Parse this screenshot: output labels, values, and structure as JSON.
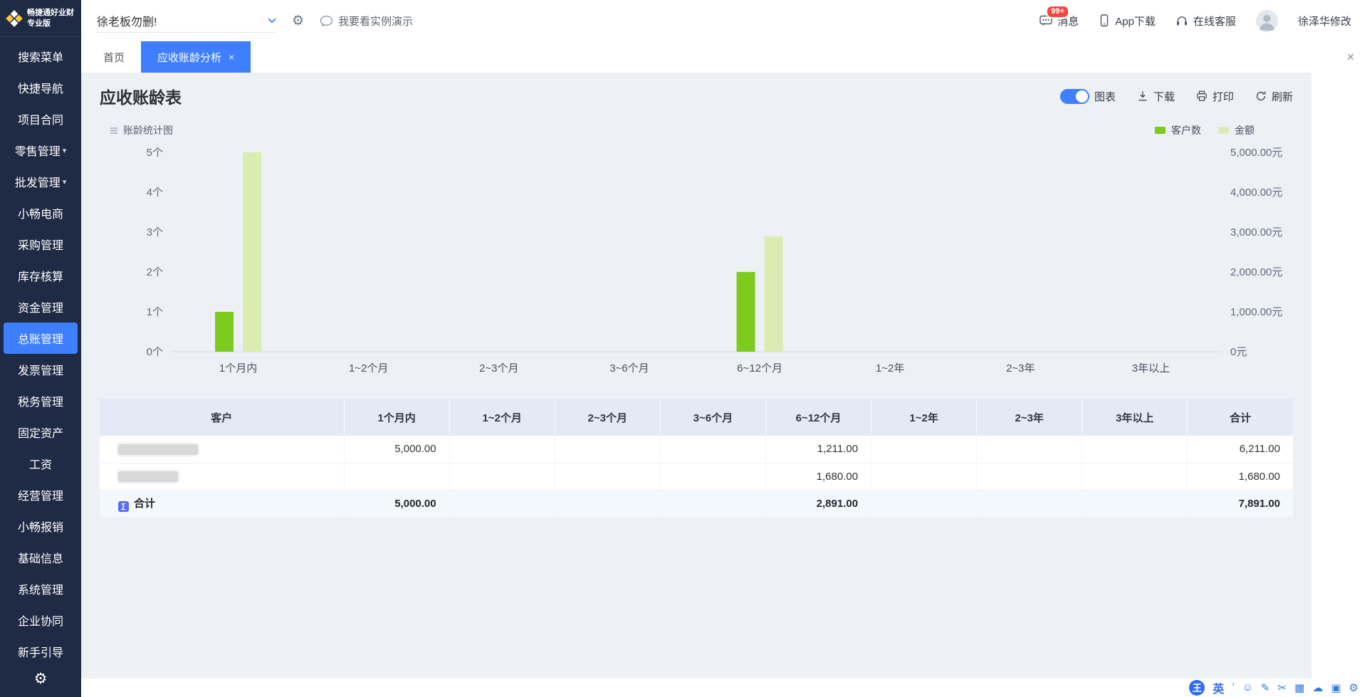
{
  "app": {
    "logo_title": "畅捷通好业财",
    "logo_subtitle": "专业版"
  },
  "sidebar": {
    "items": [
      {
        "label": "搜索菜单"
      },
      {
        "label": "快捷导航"
      },
      {
        "label": "项目合同"
      },
      {
        "label": "零售管理",
        "has_arrow": true
      },
      {
        "label": "批发管理",
        "has_arrow": true
      },
      {
        "label": "小畅电商"
      },
      {
        "label": "采购管理"
      },
      {
        "label": "库存核算"
      },
      {
        "label": "资金管理"
      },
      {
        "label": "总账管理",
        "active": true
      },
      {
        "label": "发票管理"
      },
      {
        "label": "税务管理"
      },
      {
        "label": "固定资产"
      },
      {
        "label": "工资"
      },
      {
        "label": "经营管理"
      },
      {
        "label": "小畅报销"
      },
      {
        "label": "基础信息"
      },
      {
        "label": "系统管理"
      },
      {
        "label": "企业协同"
      },
      {
        "label": "新手引导"
      }
    ]
  },
  "topbar": {
    "company_select": "徐老板勿删!",
    "demo_link": "我要看实例演示",
    "messages_label": "消息",
    "messages_badge": "99+",
    "app_download_label": "App下载",
    "online_service_label": "在线客服",
    "username": "徐泽华修改"
  },
  "tabs": [
    {
      "label": "首页",
      "active": false,
      "closable": false
    },
    {
      "label": "应收账龄分析",
      "active": true,
      "closable": true
    }
  ],
  "page": {
    "title": "应收账龄表",
    "toggle_label": "图表",
    "download_label": "下载",
    "print_label": "打印",
    "refresh_label": "刷新"
  },
  "chart_data": {
    "type": "bar",
    "title": "账龄统计图",
    "categories": [
      "1个月内",
      "1~2个月",
      "2~3个月",
      "3~6个月",
      "6~12个月",
      "1~2年",
      "2~3年",
      "3年以上"
    ],
    "series": [
      {
        "name": "客户数",
        "color": "#7ecb20",
        "axis": "left",
        "values": [
          1,
          0,
          0,
          0,
          2,
          0,
          0,
          0
        ]
      },
      {
        "name": "金额",
        "color": "#d9edb3",
        "axis": "right",
        "values": [
          5000,
          0,
          0,
          0,
          2891,
          0,
          0,
          0
        ]
      }
    ],
    "left_axis": {
      "ticks": [
        "0个",
        "1个",
        "2个",
        "3个",
        "4个",
        "5个"
      ],
      "max": 5
    },
    "right_axis": {
      "ticks": [
        "0元",
        "1,000.00元",
        "2,000.00元",
        "3,000.00元",
        "4,000.00元",
        "5,000.00元"
      ],
      "max": 5000
    },
    "legend_position": "top-right",
    "grid": false
  },
  "table": {
    "headers": [
      "客户",
      "1个月内",
      "1~2个月",
      "2~3个月",
      "3~6个月",
      "6~12个月",
      "1~2年",
      "2~3年",
      "3年以上",
      "合计"
    ],
    "rows": [
      {
        "customer_redacted": true,
        "values": [
          "5,000.00",
          "",
          "",
          "",
          "1,211.00",
          "",
          "",
          "",
          "6,211.00"
        ]
      },
      {
        "customer_redacted": true,
        "values": [
          "",
          "",
          "",
          "",
          "1,680.00",
          "",
          "",
          "",
          "1,680.00"
        ]
      }
    ],
    "total_row": {
      "label": "合计",
      "values": [
        "5,000.00",
        "",
        "",
        "",
        "2,891.00",
        "",
        "",
        "",
        "7,891.00"
      ]
    }
  },
  "ime_bar": {
    "logo": "王",
    "lang": "英"
  },
  "icons": {
    "gear": "⚙",
    "caret_down": "▾",
    "close": "×",
    "sigma": "∑",
    "emoji": "☺",
    "pencil": "✎",
    "scissors": "✂",
    "keyboard": "▦",
    "cloud": "☁",
    "toolbox": "▣",
    "apostrophe": "’"
  },
  "colors": {
    "accent": "#3d7fff",
    "sidebar_bg": "#1f2a44",
    "content_bg": "#edf0f5",
    "series_customer": "#7ecb20",
    "series_amount": "#d9edb3",
    "badge_red": "#f5483d"
  }
}
